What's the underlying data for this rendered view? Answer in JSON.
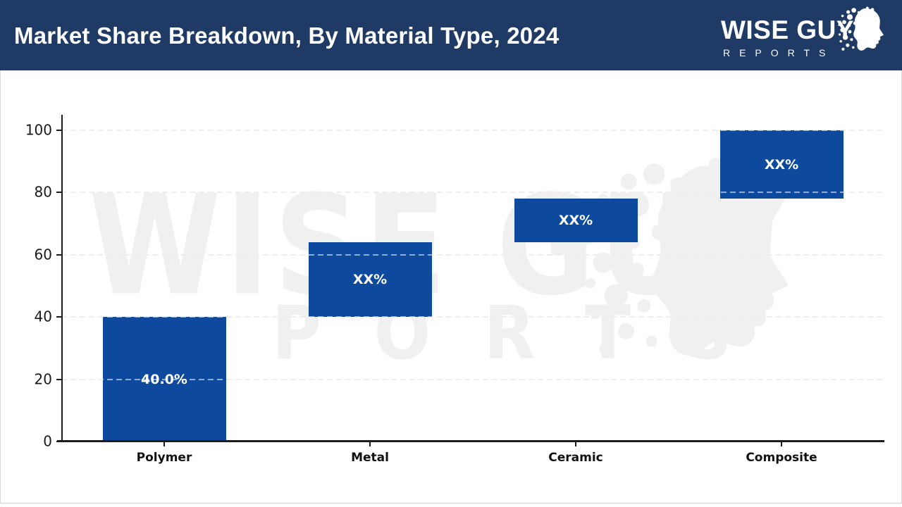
{
  "header": {
    "title": "Market Share Breakdown, By Material Type, 2024",
    "logo": {
      "wordmark": "WISE GUY",
      "subtext": "REPORTS"
    }
  },
  "watermark": {
    "wordmark": "WISE GUY",
    "subtext": "PORTS"
  },
  "chart_data": {
    "type": "bar",
    "subtype": "waterfall",
    "title": "Market Share Breakdown, By Material Type, 2024",
    "categories": [
      "Polymer",
      "Metal",
      "Ceramic",
      "Composite"
    ],
    "segments": [
      {
        "category": "Polymer",
        "start": 0,
        "end": 40,
        "value_label": "40.0%"
      },
      {
        "category": "Metal",
        "start": 40,
        "end": 64,
        "value_label": "XX%"
      },
      {
        "category": "Ceramic",
        "start": 64,
        "end": 78,
        "value_label": "XX%"
      },
      {
        "category": "Composite",
        "start": 78,
        "end": 100,
        "value_label": "XX%"
      }
    ],
    "yticks": [
      0,
      20,
      40,
      60,
      80,
      100
    ],
    "ylim": [
      0,
      105
    ],
    "xlabel": "",
    "ylabel": "",
    "grid": "horizontal-dashed",
    "legend": "none"
  },
  "colors": {
    "header_bg": "#1f3a64",
    "bar_fill": "#0d4a9e",
    "bar_label": "#ffffff",
    "grid_line": "#d9d9d9",
    "axis_line": "#1c1c1c",
    "watermark": "#f0f0f0"
  }
}
